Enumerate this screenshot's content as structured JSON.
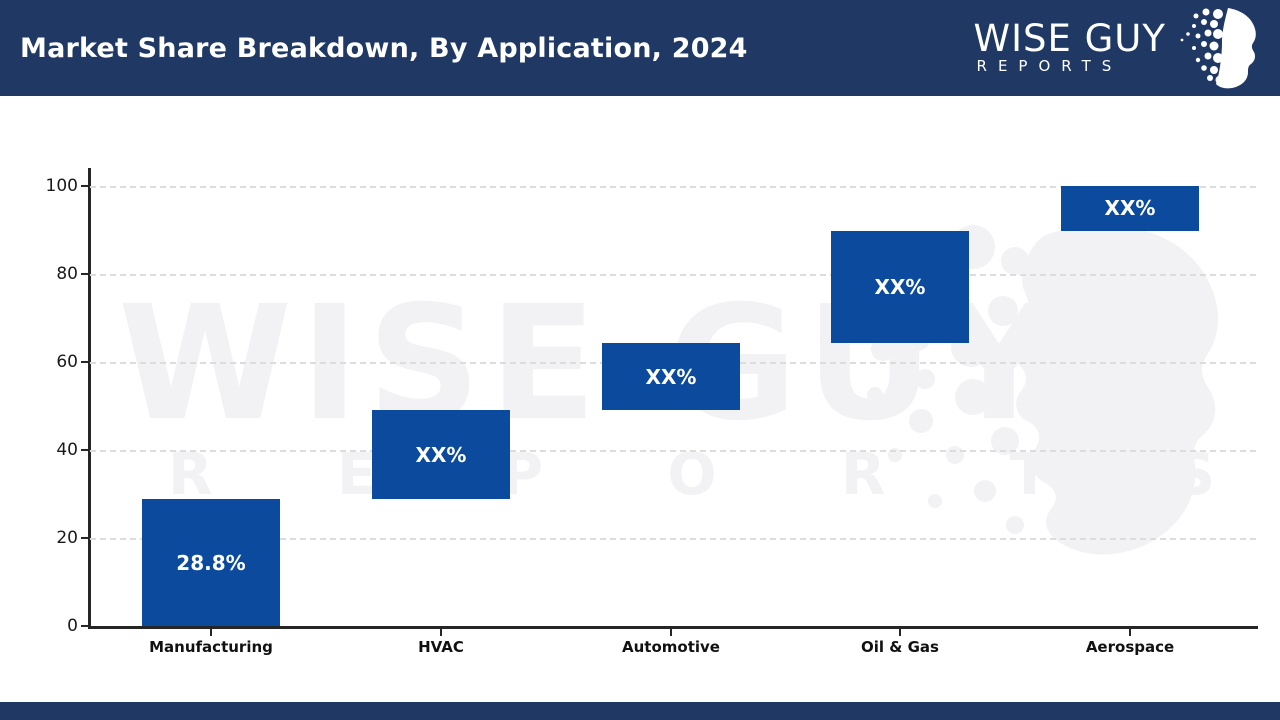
{
  "header": {
    "title": "Market Share Breakdown, By Application, 2024",
    "logo": {
      "line1": "WISE GUY",
      "line2": "REPORTS"
    }
  },
  "watermark": {
    "line1": "WISE GUY",
    "line2": "R E P O R T S"
  },
  "colors": {
    "header_bg": "#1f3864",
    "footer_bg": "#1f3864",
    "bar": "#0c4a9d",
    "grid": "#dcdcdc",
    "axis": "#262626",
    "bar_label_text": "#ffffff",
    "watermark": "#f2f2f4"
  },
  "chart_data": {
    "type": "bar",
    "subtype": "waterfall",
    "title": "Market Share Breakdown, By Application, 2024",
    "categories": [
      "Manufacturing",
      "HVAC",
      "Automotive",
      "Oil & Gas",
      "Aerospace"
    ],
    "segments": [
      {
        "category": "Manufacturing",
        "start": 0,
        "end": 28.8,
        "label": "28.8%"
      },
      {
        "category": "HVAC",
        "start": 28.8,
        "end": 49.1,
        "label": "XX%"
      },
      {
        "category": "Automotive",
        "start": 49.1,
        "end": 64.3,
        "label": "XX%"
      },
      {
        "category": "Oil & Gas",
        "start": 64.3,
        "end": 89.8,
        "label": "XX%"
      },
      {
        "category": "Aerospace",
        "start": 89.8,
        "end": 100,
        "label": "XX%"
      }
    ],
    "y_ticks": [
      0,
      20,
      40,
      60,
      80,
      100
    ],
    "ylim": [
      0,
      104
    ],
    "xlabel": "",
    "ylabel": "",
    "grid": "horizontal-dashed",
    "legend": "none"
  }
}
